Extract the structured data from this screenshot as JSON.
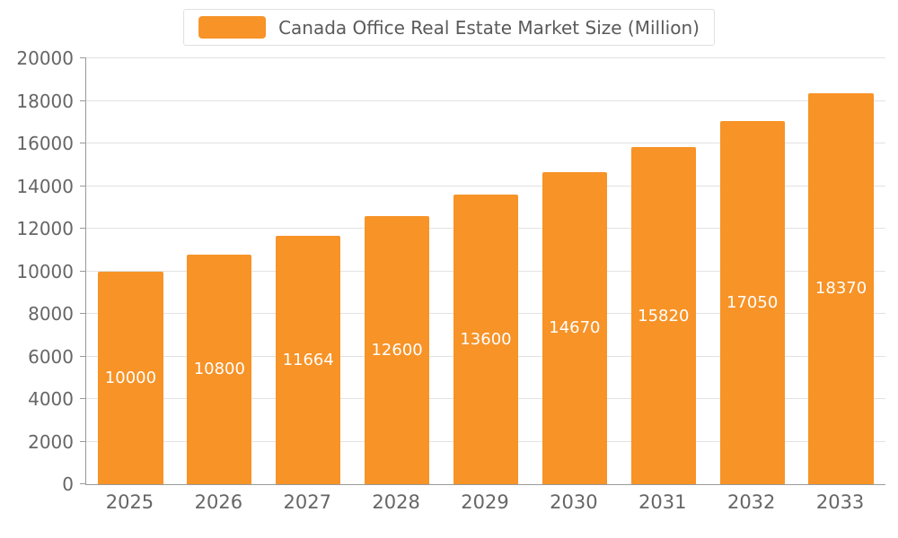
{
  "chart_data": {
    "type": "bar",
    "title": "Canada Office Real Estate Market Size (Million)",
    "categories": [
      "2025",
      "2026",
      "2027",
      "2028",
      "2029",
      "2030",
      "2031",
      "2032",
      "2033"
    ],
    "values": [
      10000,
      10800,
      11664,
      12600,
      13600,
      14670,
      15820,
      17050,
      18370
    ],
    "xlabel": "",
    "ylabel": "",
    "ylim": [
      0,
      20000
    ],
    "ytick_step": 2000,
    "grid": true,
    "legend_position": "top",
    "bar_color": "#f79327",
    "value_label_color": "#ffffff",
    "axis_color": "#9a9a9a",
    "tick_label_color": "#666666"
  },
  "legend": {
    "series_label": "Canada Office Real Estate Market Size (Million)"
  }
}
